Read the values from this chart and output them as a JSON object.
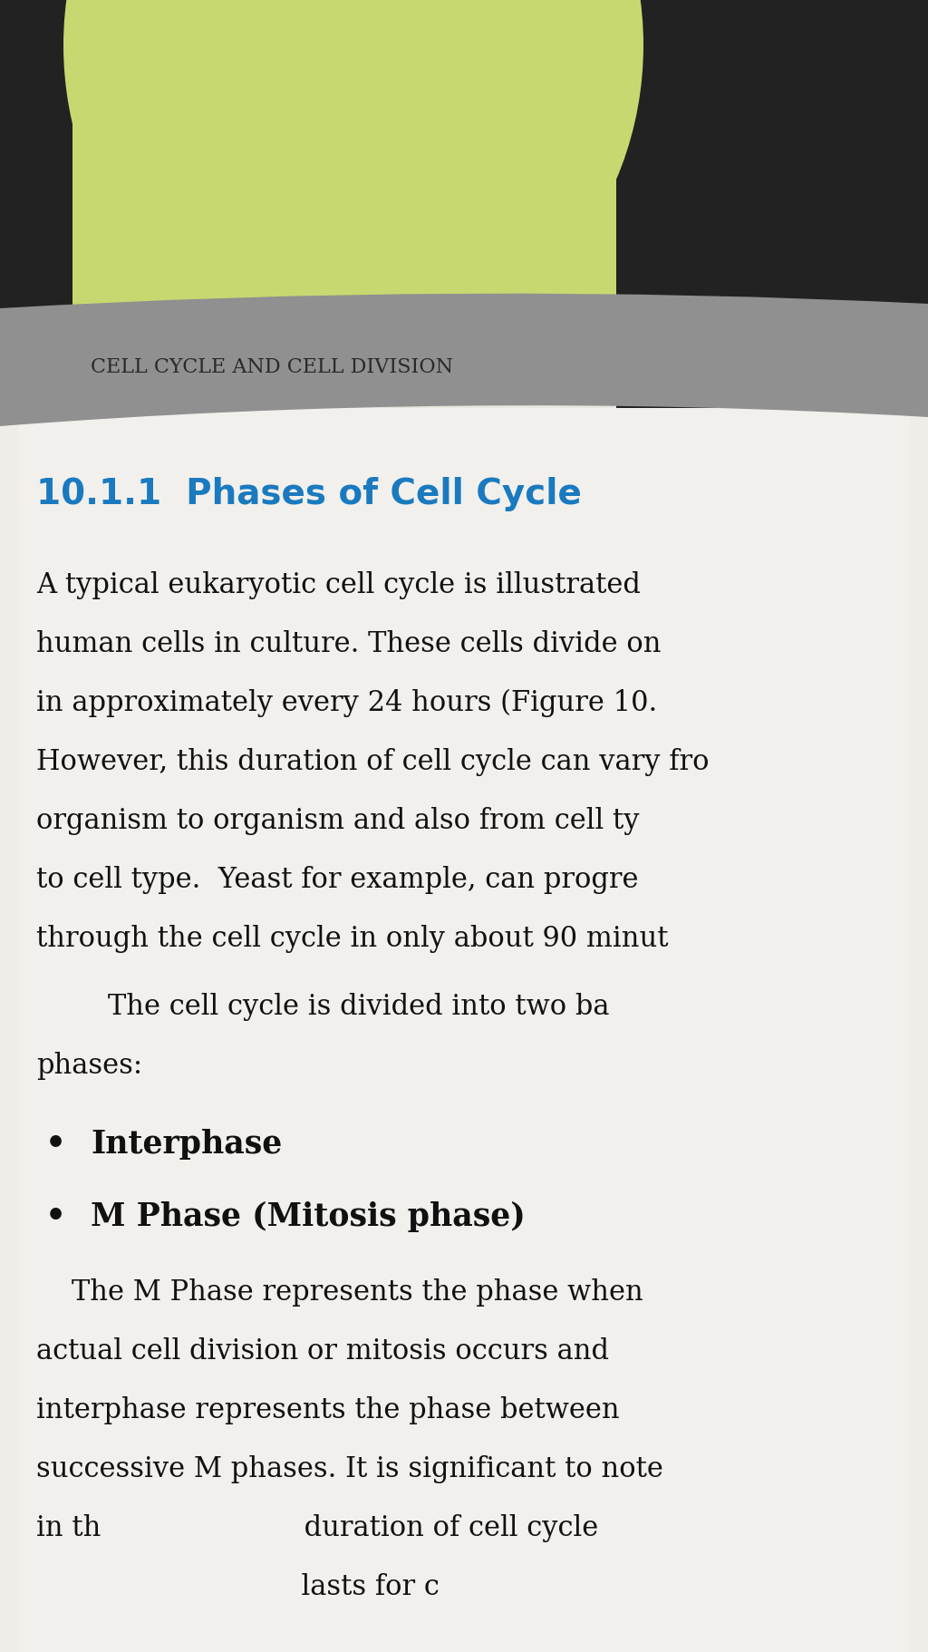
{
  "fig_width": 10.24,
  "fig_height": 18.22,
  "page_bg": "#e8e8e0",
  "green_color": "#c8d870",
  "gray_banner_color": "#909090",
  "header_text": "CELL CYCLE AND CELL DIVISION",
  "header_text_color": "#2a2a2a",
  "section_title": "10.1.1  Phases of Cell Cycle",
  "section_title_color": "#1a7abf",
  "body_text_color": "#111111",
  "content_bg": "#f0ede8",
  "top_dark_color": "#1a1a1a",
  "body_lines": [
    "A typical eukaryotic cell cycle is illustrated",
    "human cells in culture. These cells divide on",
    "in approximately every 24 hours (Figure 10.",
    "However, this duration of cell cycle can vary fro",
    "organism to organism and also from cell ty",
    "to cell type.  Yeast for example, can progre",
    "through the cell cycle in only about 90 minut"
  ],
  "p2_line1": "    The cell cycle is divided into two ba",
  "p2_line2": "phases:",
  "bullet1": "Interphase",
  "bullet2": "M Phase (Mitosis phase)",
  "p3_lines": [
    "    The M Phase represents the phase when",
    "actual cell division or mitosis occurs and",
    "interphase represents the phase between",
    "successive M phases. It is significant to note",
    "in th                       duration of cell cycle",
    "                              lasts for c"
  ]
}
